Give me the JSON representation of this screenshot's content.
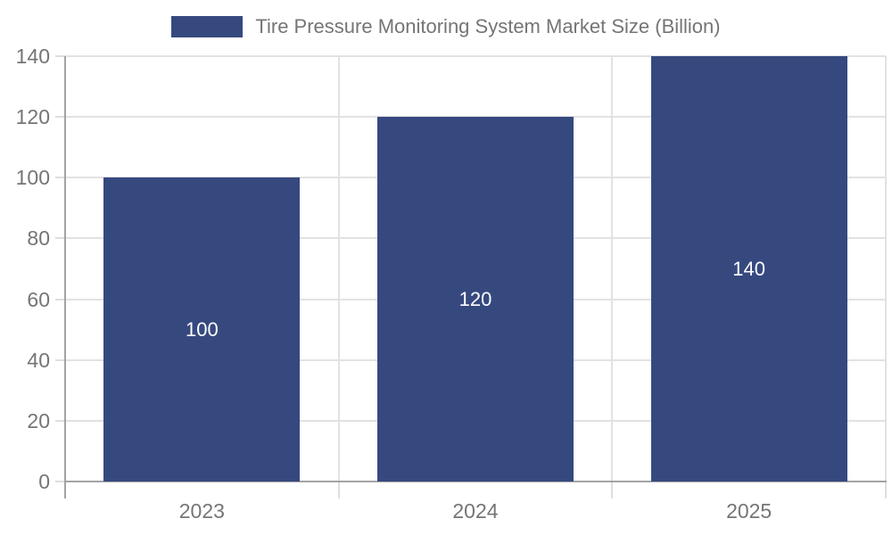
{
  "legend": {
    "label": "Tire Pressure Monitoring System Market Size (Billion)"
  },
  "chart_data": {
    "type": "bar",
    "title": "Tire Pressure Monitoring System Market Size (Billion)",
    "categories": [
      "2023",
      "2024",
      "2025"
    ],
    "values": [
      100,
      120,
      140
    ],
    "bar_labels": [
      "100",
      "120",
      "140"
    ],
    "xlabel": "",
    "ylabel": "",
    "ylim": [
      0,
      140
    ],
    "yticks": [
      0,
      20,
      40,
      60,
      80,
      100,
      120,
      140
    ],
    "grid": true,
    "legend_position": "top-center",
    "bar_label_position": "inside-center",
    "colors": {
      "bar": "#36497f",
      "grid": "#e2e2e2",
      "axis": "#a3a3a3",
      "tick": "#dedede",
      "tick_text": "#757575",
      "title_text": "#757575",
      "bar_label_text": "#ffffff",
      "background": "#ffffff"
    }
  }
}
